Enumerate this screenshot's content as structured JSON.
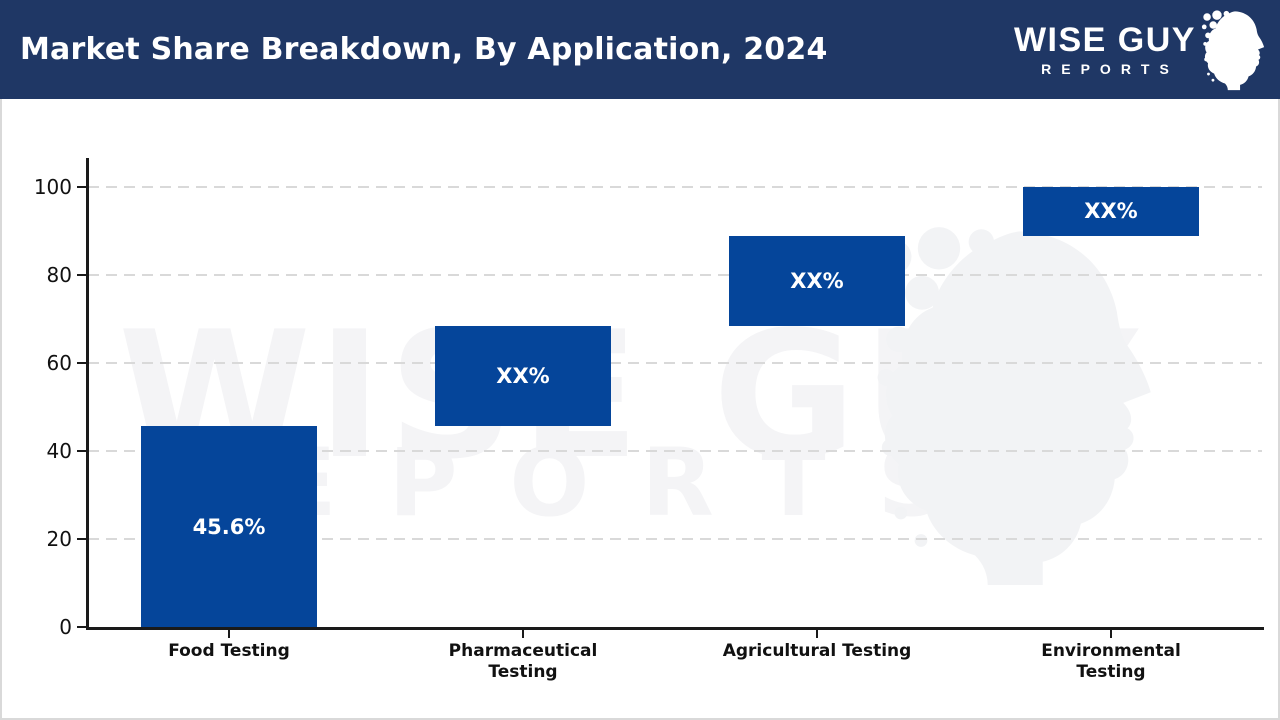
{
  "header": {
    "title": "Market Share Breakdown, By Application, 2024",
    "logo": {
      "line1": "WISE GUY",
      "line2": "REPORTS"
    }
  },
  "colors": {
    "header_bg": "#1f3765",
    "bar_color": "#05459a",
    "axis_color": "#1a1a1a",
    "gridline_color": "#d9d9d9",
    "watermark_color": "#f4f4f6"
  },
  "watermark": {
    "line1": "WISE GUY",
    "line2": "REPORTS"
  },
  "chart_data": {
    "type": "bar",
    "variant": "waterfall",
    "title": "Market Share Breakdown, By Application, 2024",
    "categories": [
      "Food Testing",
      "Pharmaceutical Testing",
      "Agricultural Testing",
      "Environmental Testing"
    ],
    "bars": [
      {
        "category": "Food Testing",
        "start": 0,
        "end": 45.6,
        "label": "45.6%"
      },
      {
        "category": "Pharmaceutical Testing",
        "start": 45.6,
        "end": 68.4,
        "label": "XX%"
      },
      {
        "category": "Agricultural Testing",
        "start": 68.4,
        "end": 88.9,
        "label": "XX%"
      },
      {
        "category": "Environmental Testing",
        "start": 88.9,
        "end": 100,
        "label": "XX%"
      }
    ],
    "yticks": [
      0,
      20,
      40,
      60,
      80,
      100
    ],
    "ylim": [
      0,
      106.5
    ],
    "xlabel": "",
    "ylabel": "",
    "grid": "horizontal-dashed",
    "legend": "none",
    "bar_color": "#05459a",
    "bar_label_color": "#ffffff"
  }
}
